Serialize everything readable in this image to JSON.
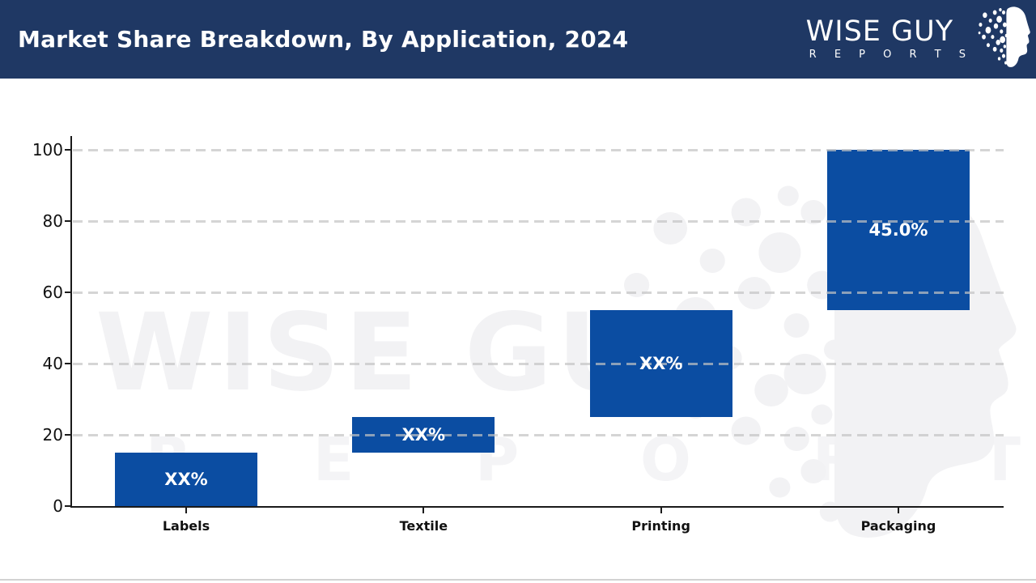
{
  "header": {
    "title": "Market Share Breakdown, By Application, 2024",
    "logo": {
      "line1": "WISE GUY",
      "line2": "R E P O R T S"
    }
  },
  "watermark": {
    "line1": "WISE GUY",
    "line2": "R E P O R T"
  },
  "chart_data": {
    "type": "bar",
    "subtype": "waterfall",
    "title": "Market Share Breakdown, By Application, 2024",
    "categories": [
      "Labels",
      "Textile",
      "Printing",
      "Packaging"
    ],
    "segments": [
      {
        "category": "Labels",
        "start": 0,
        "end": 15,
        "label": "XX%"
      },
      {
        "category": "Textile",
        "start": 15,
        "end": 25,
        "label": "XX%"
      },
      {
        "category": "Printing",
        "start": 25,
        "end": 55,
        "label": "XX%"
      },
      {
        "category": "Packaging",
        "start": 55,
        "end": 100,
        "label": "45.0%"
      }
    ],
    "xlabel": "",
    "ylabel": "",
    "ylim": [
      0,
      100
    ],
    "yticks": [
      0,
      20,
      40,
      60,
      80,
      100
    ],
    "grid": "horizontal dashed, drawn over bars",
    "legend": "none",
    "bar_color": "#0b4da2",
    "value_label_color": "#ffffff"
  },
  "colors": {
    "header_bg": "#1f3864",
    "bar": "#0b4da2",
    "axis": "#1a1a1a",
    "gridline": "#d9d9d9",
    "watermark": "#f2f2f4",
    "title_text": "#ffffff"
  }
}
